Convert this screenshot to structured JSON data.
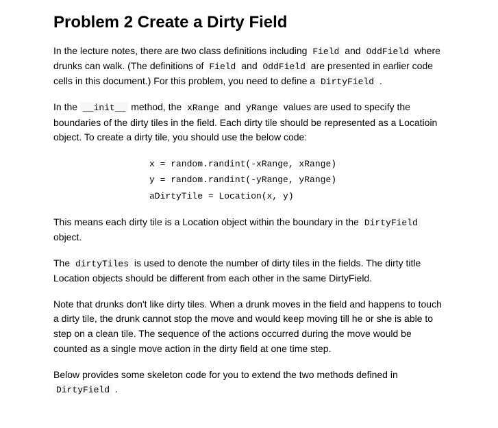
{
  "title": "Problem 2 Create a Dirty Field",
  "p1": {
    "t0": "In the lecture notes, there are two class definitions including ",
    "c1": "Field",
    "t1": " and ",
    "c2": "OddField",
    "t2": " where drunks can walk. (The definitions of ",
    "c3": "Field",
    "t3": " and ",
    "c4": "OddField",
    "t4": " are presented in earlier code cells in this document.) For this problem, you need to define a ",
    "c5": "DirtyField",
    "t5": " ."
  },
  "p2": {
    "t0": "In the ",
    "c1": "__init__",
    "t1": " method, the ",
    "c2": "xRange",
    "t2": " and ",
    "c3": "yRange",
    "t3": " values are used to specify the boundaries of the dirty tiles in the field. Each dirty tile should be represented as a Locatioin object. To create a dirty tile, you should use the below code:"
  },
  "codeblock": "x = random.randint(-xRange, xRange)\ny = random.randint(-yRange, yRange)\naDirtyTile = Location(x, y)",
  "p3": {
    "t0": "This means each dirty tile is a Location object within the boundary in the ",
    "c1": "DirtyField",
    "t1": " object."
  },
  "p4": {
    "t0": "The ",
    "c1": "dirtyTiles",
    "t1": " is used to denote the number of dirty tiles in the fields. The dirty title Location objects should be different from each other in the same DirtyField."
  },
  "p5": {
    "t0": "Note that drunks don't like dirty tiles. When a drunk moves in the field and happens to touch a dirty tile, the drunk cannot stop the move and would keep moving till he or she is able to step on a clean tile. The sequence of the actions occurred during the move would be counted as a single move action in the dirty field at one time step."
  },
  "p6": {
    "t0": "Below provides some skeleton code for you to extend the two methods defined in ",
    "c1": "DirtyField",
    "t1": " ."
  }
}
